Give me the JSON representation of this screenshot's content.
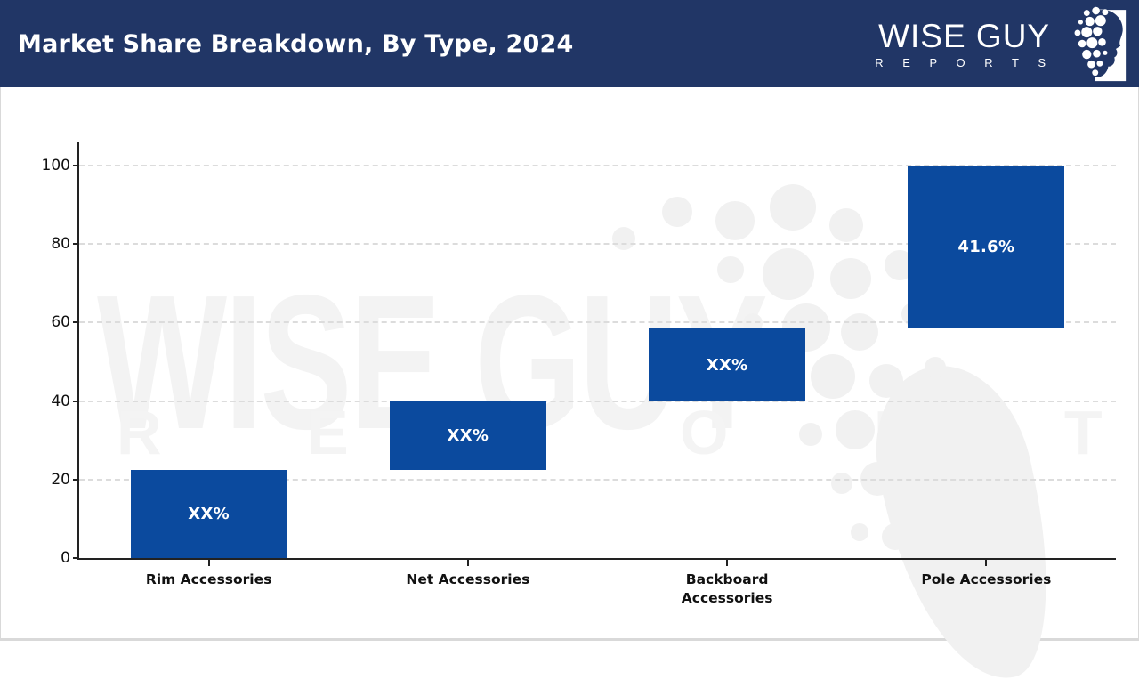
{
  "header": {
    "title": "Market Share Breakdown, By Type, 2024",
    "bg_color": "#213666",
    "logo": {
      "line1": "WISE GUY",
      "line2": "R E P O R T S"
    }
  },
  "watermark": {
    "line1": "WISE GUY",
    "line2": "R E P O R T S"
  },
  "chart_data": {
    "type": "bar",
    "subtype": "waterfall-floating-bars",
    "title": "Market Share Breakdown, By Type, 2024",
    "xlabel": "",
    "ylabel": "",
    "categories": [
      "Rim Accessories",
      "Net Accessories",
      "Backboard Accessories",
      "Pole Accessories"
    ],
    "segments": [
      {
        "category": "Rim Accessories",
        "start": 0,
        "end": 22.4,
        "value_label": "XX%"
      },
      {
        "category": "Net Accessories",
        "start": 22.4,
        "end": 40.0,
        "value_label": "XX%"
      },
      {
        "category": "Backboard Accessories",
        "start": 40.0,
        "end": 58.4,
        "value_label": "XX%"
      },
      {
        "category": "Pole Accessories",
        "start": 58.4,
        "end": 100.0,
        "value_label": "41.6%"
      }
    ],
    "y_ticks": [
      0,
      20,
      40,
      60,
      80,
      100
    ],
    "ylim": [
      0,
      106
    ],
    "grid": "horizontal-dashed",
    "legend": "none",
    "bar_color": "#0b4a9e",
    "bar_label_color": "#ffffff",
    "grid_color": "#dcdcdc",
    "axis_color": "#222222"
  }
}
